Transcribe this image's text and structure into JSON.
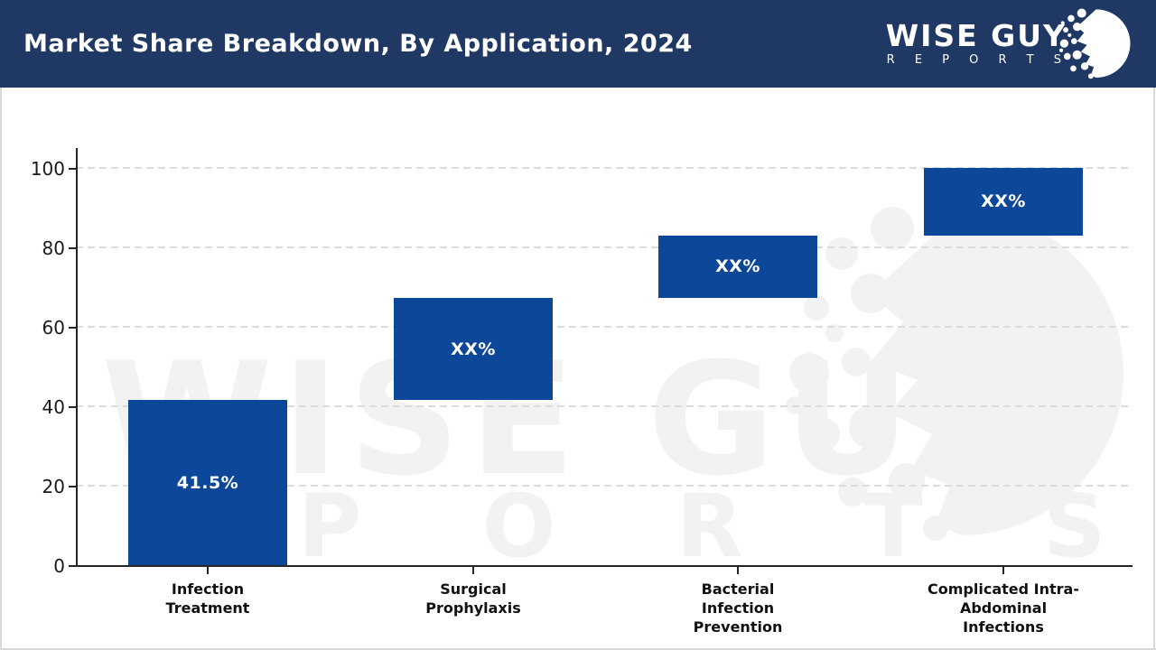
{
  "page": {
    "background": "#ffffff",
    "frame_border_color": "#d9d9d9"
  },
  "header": {
    "bg_color": "#1f3864",
    "title": "Market Share Breakdown, By Application, 2024",
    "logo": {
      "line1": "WISE GUY",
      "line2": "R E P O R T S",
      "face_icon": "dotted-face-profile"
    }
  },
  "watermark": {
    "line1": "WISE GUY",
    "line2": "P O R T S",
    "face_icon": "dotted-face-profile",
    "color": "#f2f2f2"
  },
  "chart_data": {
    "type": "bar",
    "subtype": "waterfall",
    "title": "Market Share Breakdown, By Application, 2024",
    "xlabel": "",
    "ylabel": "",
    "ylim": [
      0,
      100
    ],
    "yticks": [
      0,
      20,
      40,
      60,
      80,
      100
    ],
    "grid": {
      "horizontal": true,
      "style": "dashed",
      "color": "#dcdcdc"
    },
    "legend": "none",
    "bar_color": "#0c4799",
    "bar_label_color": "#ffffff",
    "categories": [
      {
        "lines": [
          "Infection",
          "Treatment"
        ]
      },
      {
        "lines": [
          "Surgical",
          "Prophylaxis"
        ]
      },
      {
        "lines": [
          "Bacterial",
          "Infection",
          "Prevention"
        ]
      },
      {
        "lines": [
          "Complicated Intra-",
          "Abdominal",
          "Infections"
        ]
      }
    ],
    "bars": [
      {
        "label": "41.5%",
        "start": 0,
        "end": 41.5
      },
      {
        "label": "XX%",
        "start": 41.5,
        "end": 67.3
      },
      {
        "label": "XX%",
        "start": 67.3,
        "end": 83.0
      },
      {
        "label": "XX%",
        "start": 83.0,
        "end": 100.0
      }
    ]
  }
}
